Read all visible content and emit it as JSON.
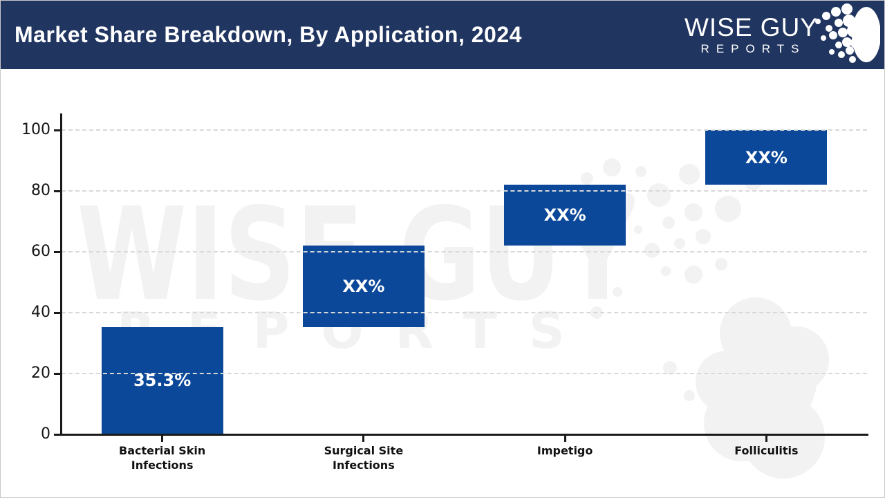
{
  "header": {
    "title": "Market Share Breakdown, By Application, 2024",
    "logo": {
      "name": "WISE GUY",
      "sub": "REPORTS"
    }
  },
  "watermark": {
    "line1": "WISE GUY",
    "line2": "REPORTS"
  },
  "colors": {
    "header_bg": "#203560",
    "bar": "#0c4899",
    "grid": "#d8d8d8",
    "axis": "#1a1a1a",
    "bar_label": "#ffffff",
    "watermark": "#f2f2f2"
  },
  "chart_data": {
    "type": "bar",
    "subtype": "waterfall",
    "title": "Market Share Breakdown, By Application, 2024",
    "categories": [
      "Bacterial Skin Infections",
      "Surgical Site Infections",
      "Impetigo",
      "Folliculitis"
    ],
    "bars": [
      {
        "category": "Bacterial Skin Infections",
        "tick_lines": [
          "Bacterial Skin",
          "Infections"
        ],
        "start": 0,
        "end": 35.3,
        "label": "35.3%"
      },
      {
        "category": "Surgical Site Infections",
        "tick_lines": [
          "Surgical Site",
          "Infections"
        ],
        "start": 35.3,
        "end": 62,
        "label": "XX%"
      },
      {
        "category": "Impetigo",
        "tick_lines": [
          "Impetigo"
        ],
        "start": 62,
        "end": 82,
        "label": "XX%"
      },
      {
        "category": "Folliculitis",
        "tick_lines": [
          "Folliculitis"
        ],
        "start": 82,
        "end": 100,
        "label": "XX%"
      }
    ],
    "ylim": [
      0,
      100
    ],
    "yticks": [
      0,
      20,
      40,
      60,
      80,
      100
    ],
    "xlabel": "",
    "ylabel": "",
    "grid": {
      "horizontal": true,
      "style": "dashed",
      "above_bars": true
    },
    "legend": "none"
  }
}
